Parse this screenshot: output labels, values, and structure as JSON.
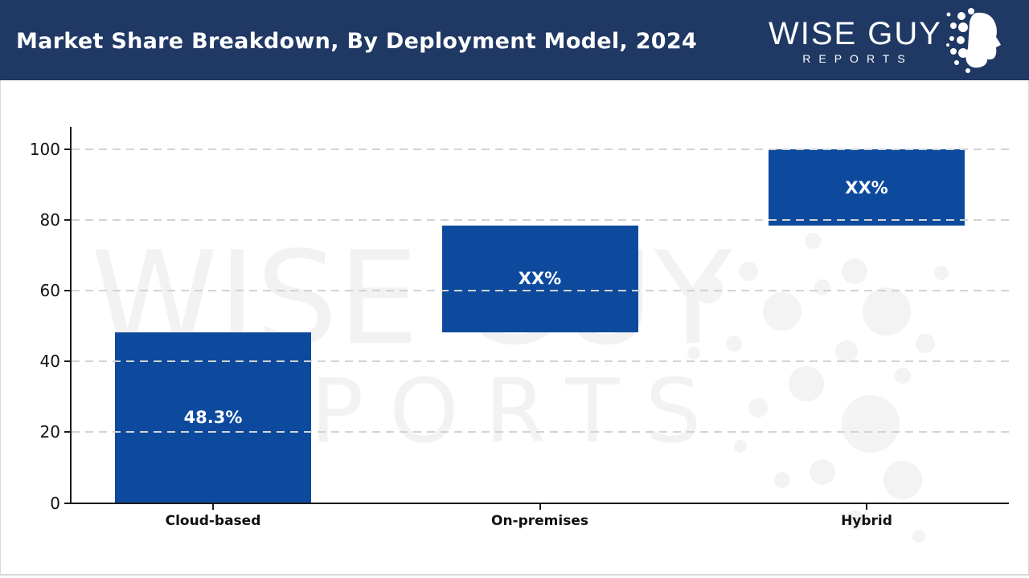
{
  "header": {
    "title": "Market Share Breakdown, By Deployment Model, 2024",
    "bg_color": "#1f3864",
    "logo": {
      "line1": "WISE GUY",
      "line2": "REPORTS"
    }
  },
  "watermark": {
    "line1": "WISE GUY",
    "line2": "REPORTS"
  },
  "chart_data": {
    "type": "bar",
    "subtype": "waterfall-floating-bars",
    "title": "Market Share Breakdown, By Deployment Model, 2024",
    "categories": [
      "Cloud-based",
      "On-premises",
      "Hybrid"
    ],
    "series": [
      {
        "name": "Market share (%)",
        "segments": [
          {
            "category": "Cloud-based",
            "start": 0,
            "end": 48.3,
            "label": "48.3%"
          },
          {
            "category": "On-premises",
            "start": 48.3,
            "end": 78.3,
            "label": "XX%"
          },
          {
            "category": "Hybrid",
            "start": 78.3,
            "end": 100,
            "label": "XX%"
          }
        ]
      }
    ],
    "xlabel": "",
    "ylabel": "",
    "yticks": [
      0,
      20,
      40,
      60,
      80,
      100
    ],
    "ylim": [
      0,
      106
    ],
    "grid": "horizontal-dashed",
    "legend": "none",
    "bar_color": "#0d4a9e",
    "gridline_color": "#d3d3d3",
    "axis_color": "#1a1a1a"
  }
}
